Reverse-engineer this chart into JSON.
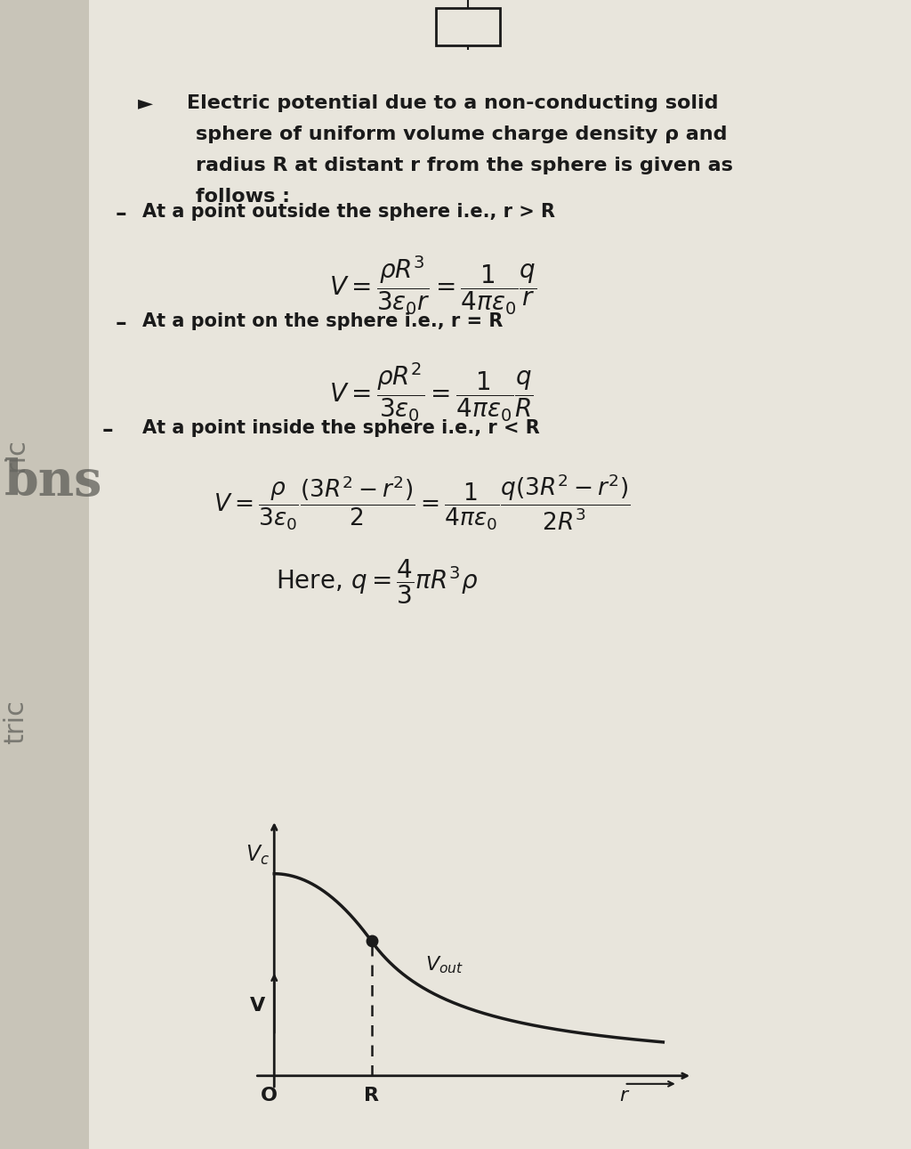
{
  "bg_color": "#d8d4cc",
  "paper_color": "#e8e5dc",
  "left_strip_color": "#c8c4b8",
  "text_color": "#1a1a1a",
  "title_line1": "Electric potential due to a non-conducting solid",
  "title_line2": "sphere of uniform volume charge density ρ and",
  "title_line3": "radius R at distant r from the sphere is given as",
  "title_line4": "follows :",
  "section1_header": "At a point outside the sphere i.e., r > R",
  "section2_header": "At a point on the sphere i.e., r = R",
  "section3_header": "At a point inside the sphere i.e., r < R",
  "bullet": "►",
  "fig_width": 10.24,
  "fig_height": 12.91,
  "dpi": 100
}
